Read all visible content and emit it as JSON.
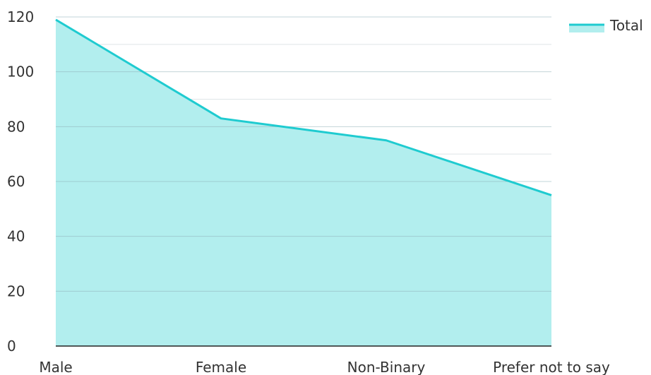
{
  "chart_data": {
    "type": "area",
    "categories": [
      "Male",
      "Female",
      "Non-Binary",
      "Prefer not to say"
    ],
    "series": [
      {
        "name": "Total",
        "values": [
          119,
          83,
          75,
          55
        ]
      }
    ],
    "ylim": [
      0,
      120
    ],
    "yticks": [
      0,
      20,
      40,
      60,
      80,
      100,
      120
    ],
    "grid": true,
    "legend_position": "top-right",
    "colors": {
      "line": "#1fcbd0",
      "fill": "#b2eeee",
      "grid": "#8fb0b8",
      "minor_grid": "#dfe5e8",
      "axis": "#222222"
    }
  }
}
